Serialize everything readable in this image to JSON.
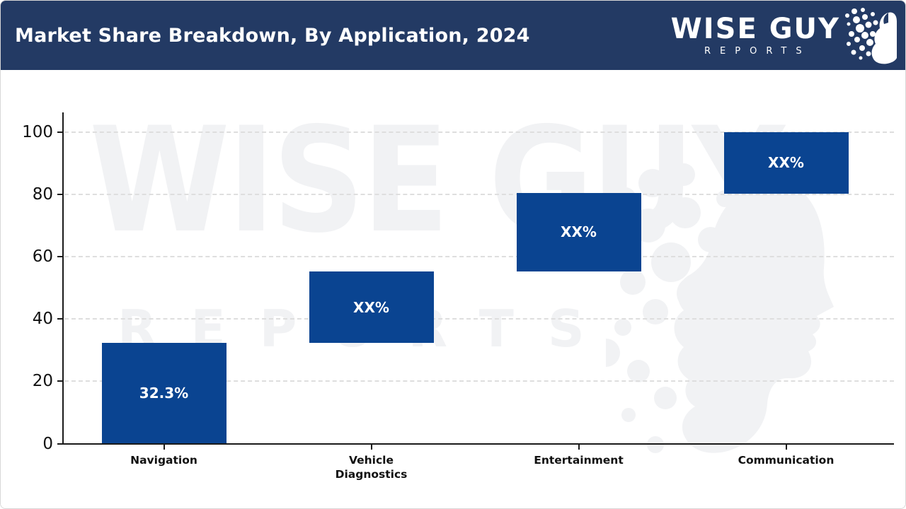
{
  "header": {
    "title": "Market Share Breakdown, By Application, 2024",
    "logo_line1": "WISE GUY",
    "logo_line2": "REPORTS"
  },
  "watermark": {
    "line1": "WISE GUY",
    "line2": "REPORTS"
  },
  "chart_data": {
    "type": "bar",
    "subtype": "waterfall",
    "title": "Market Share Breakdown, By Application, 2024",
    "categories": [
      "Navigation",
      "Vehicle Diagnostics",
      "Entertainment",
      "Communication"
    ],
    "segments": [
      {
        "category": "Navigation",
        "start": 0,
        "end": 32.3,
        "label": "32.3%"
      },
      {
        "category": "Vehicle Diagnostics",
        "start": 32.3,
        "end": 55.2,
        "label": "XX%"
      },
      {
        "category": "Entertainment",
        "start": 55.3,
        "end": 80.5,
        "label": "XX%"
      },
      {
        "category": "Communication",
        "start": 80.3,
        "end": 100,
        "label": "XX%"
      }
    ],
    "y_ticks": [
      0,
      20,
      40,
      60,
      80,
      100
    ],
    "ylim": [
      0,
      100
    ],
    "xlabel": "",
    "ylabel": "",
    "grid": "horizontal-dashed",
    "legend": "none",
    "bar_color": "#0a4491",
    "header_color": "#233a64",
    "value_label_color": "#ffffff"
  }
}
